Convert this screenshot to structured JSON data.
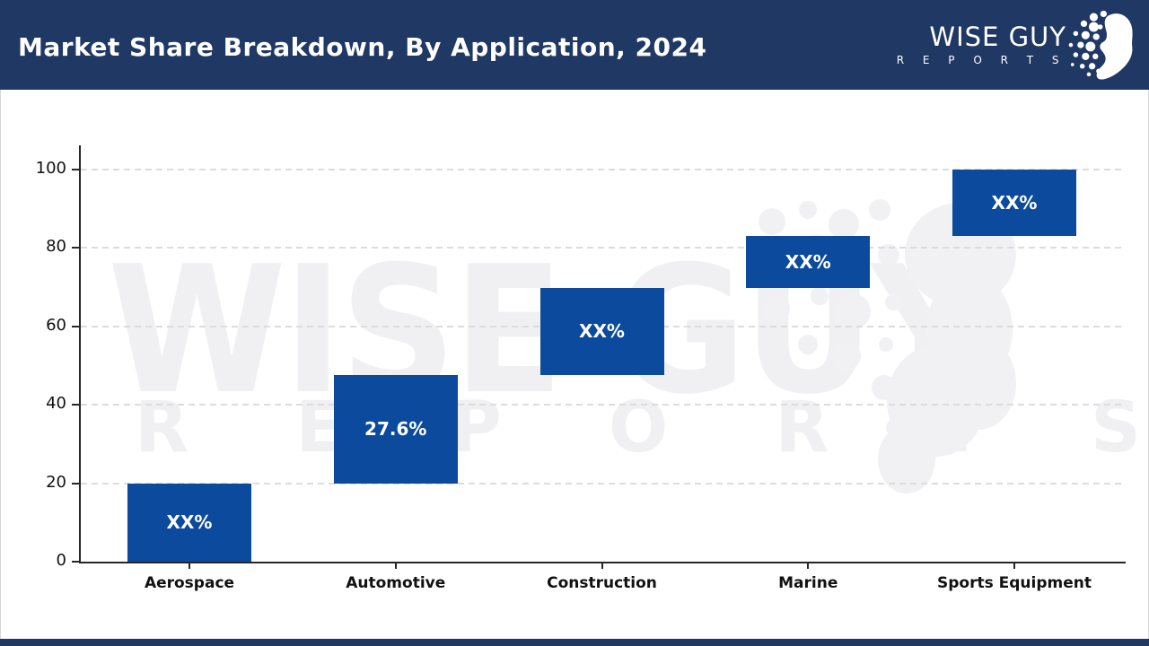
{
  "header": {
    "title": "Market Share Breakdown, By Application, 2024",
    "bg_color": "#1f3864",
    "logo": {
      "line1": "WISE GUY",
      "line2": "R E P O R T S"
    }
  },
  "watermark": {
    "line1": "WISE GUY",
    "line2": "R E P O R T S"
  },
  "chart_data": {
    "type": "bar",
    "subtype": "waterfall-floating-bars",
    "title": "Market Share Breakdown, By Application, 2024",
    "xlabel": "",
    "ylabel": "",
    "categories": [
      "Aerospace",
      "Automotive",
      "Construction",
      "Marine",
      "Sports Equipment"
    ],
    "segments": [
      {
        "category": "Aerospace",
        "start": 0,
        "end": 20,
        "label": "XX%"
      },
      {
        "category": "Automotive",
        "start": 20,
        "end": 47.6,
        "label": "27.6%"
      },
      {
        "category": "Construction",
        "start": 47.6,
        "end": 69.7,
        "label": "XX%"
      },
      {
        "category": "Marine",
        "start": 69.7,
        "end": 82.9,
        "label": "XX%"
      },
      {
        "category": "Sports Equipment",
        "start": 82.9,
        "end": 100,
        "label": "XX%"
      }
    ],
    "yticks": [
      0,
      20,
      40,
      60,
      80,
      100
    ],
    "ylim": [
      0,
      106
    ],
    "grid": "dashed-horizontal",
    "legend": "none",
    "bar_color": "#0c4a9e",
    "bar_label_color": "#ffffff",
    "axis_color": "#262626",
    "grid_color": "#dcdcdc"
  },
  "footer": {
    "bar_color": "#1f3864"
  }
}
